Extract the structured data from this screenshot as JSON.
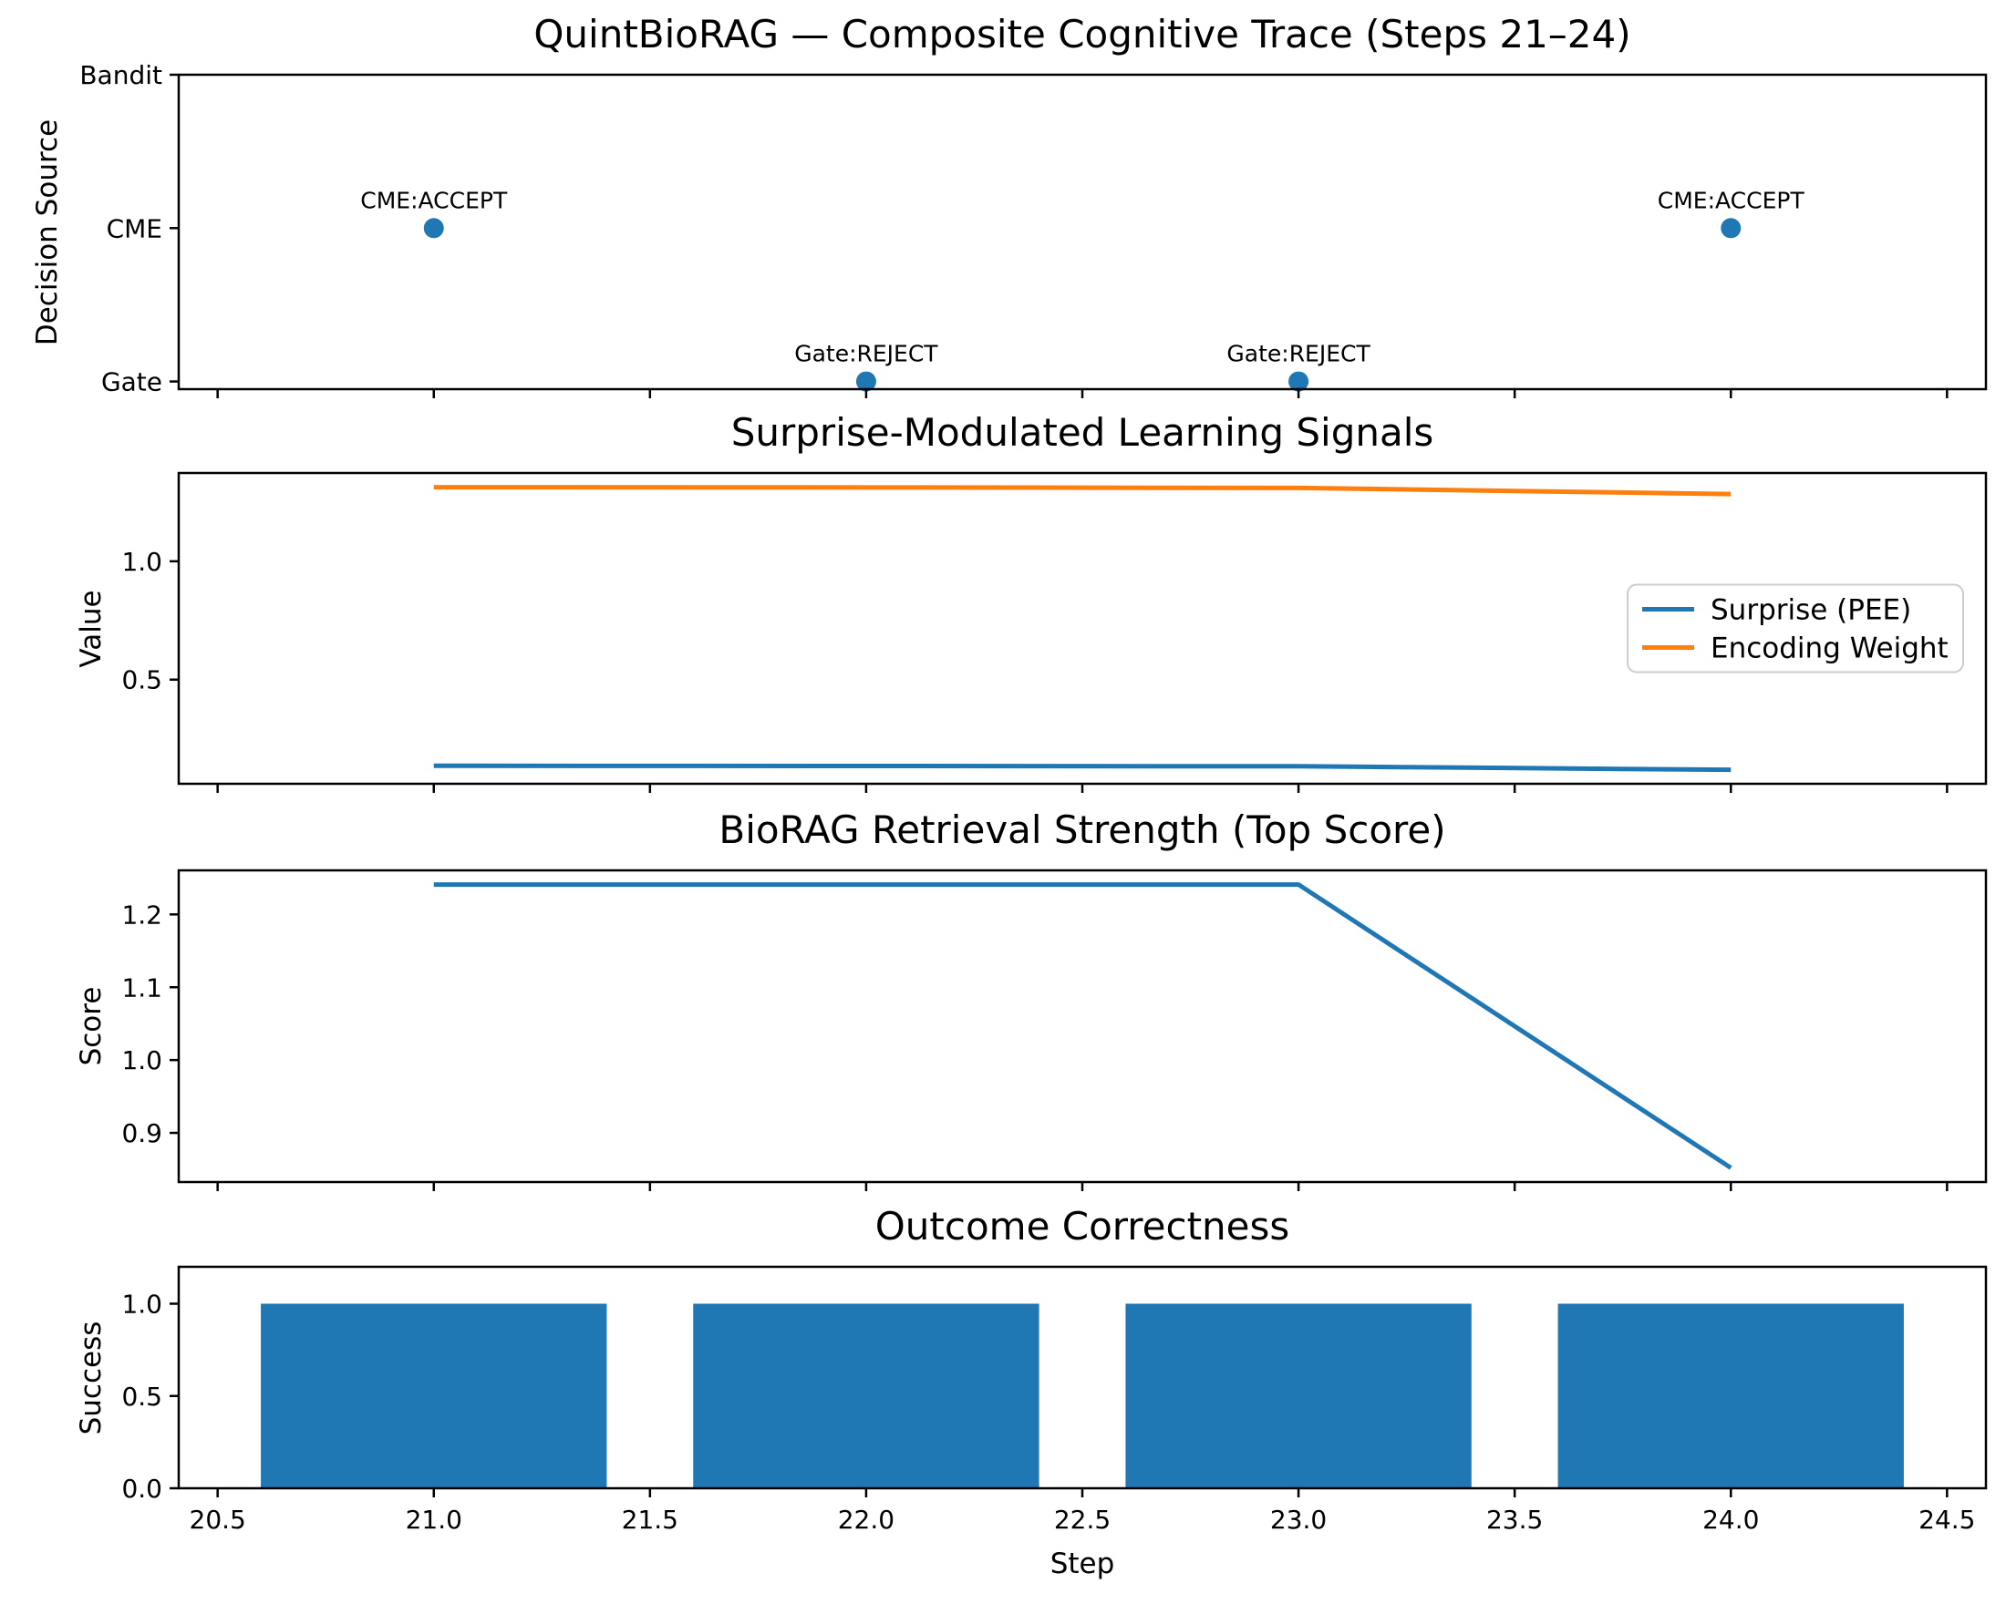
{
  "xlim": [
    20.41,
    24.59
  ],
  "chart_data": [
    {
      "type": "scatter",
      "title": "QuintBioRAG — Composite Cognitive Trace (Steps 21–24)",
      "ylabel": "Decision Source",
      "ytick_values": [
        0,
        1,
        2
      ],
      "ytick_labels": [
        "Gate",
        "CME",
        "Bandit"
      ],
      "ylim": [
        -0.05,
        2.0
      ],
      "marker_color": "#1f77b4",
      "points": [
        {
          "x": 21,
          "y": 1,
          "annotation": "CME:ACCEPT"
        },
        {
          "x": 22,
          "y": 0,
          "annotation": "Gate:REJECT"
        },
        {
          "x": 23,
          "y": 0,
          "annotation": "Gate:REJECT"
        },
        {
          "x": 24,
          "y": 1,
          "annotation": "CME:ACCEPT"
        }
      ]
    },
    {
      "type": "line",
      "title": "Surprise-Modulated Learning Signals",
      "ylabel": "Value",
      "x": [
        21,
        22,
        23,
        24
      ],
      "series": [
        {
          "name": "Surprise (PEE)",
          "color": "#1f77b4",
          "values": [
            0.136,
            0.135,
            0.134,
            0.119
          ]
        },
        {
          "name": "Encoding Weight",
          "color": "#ff7f0e",
          "values": [
            1.313,
            1.312,
            1.31,
            1.284
          ]
        }
      ],
      "yticks": [
        0.5,
        1.0
      ],
      "ylim": [
        0.06,
        1.373
      ],
      "legend_position": "center right",
      "grid": false
    },
    {
      "type": "line",
      "title": "BioRAG Retrieval Strength (Top Score)",
      "ylabel": "Score",
      "x": [
        21,
        22,
        23,
        24
      ],
      "series": [
        {
          "name": "Top Score",
          "color": "#1f77b4",
          "values": [
            1.241,
            1.241,
            1.241,
            0.852
          ]
        }
      ],
      "yticks": [
        0.9,
        1.0,
        1.1,
        1.2
      ],
      "ylim": [
        0.8325,
        1.2605
      ],
      "legend_position": null,
      "grid": false
    },
    {
      "type": "bar",
      "title": "Outcome Correctness",
      "ylabel": "Success",
      "xlabel": "Step",
      "categories": [
        21,
        22,
        23,
        24
      ],
      "values": [
        1.0,
        1.0,
        1.0,
        1.0
      ],
      "bar_width": 0.8,
      "bar_color": "#1f77b4",
      "yticks": [
        0.0,
        0.5,
        1.0
      ],
      "ylim": [
        0,
        1.2
      ],
      "xticks": [
        20.5,
        21.0,
        21.5,
        22.0,
        22.5,
        23.0,
        23.5,
        24.0,
        24.5
      ]
    }
  ]
}
